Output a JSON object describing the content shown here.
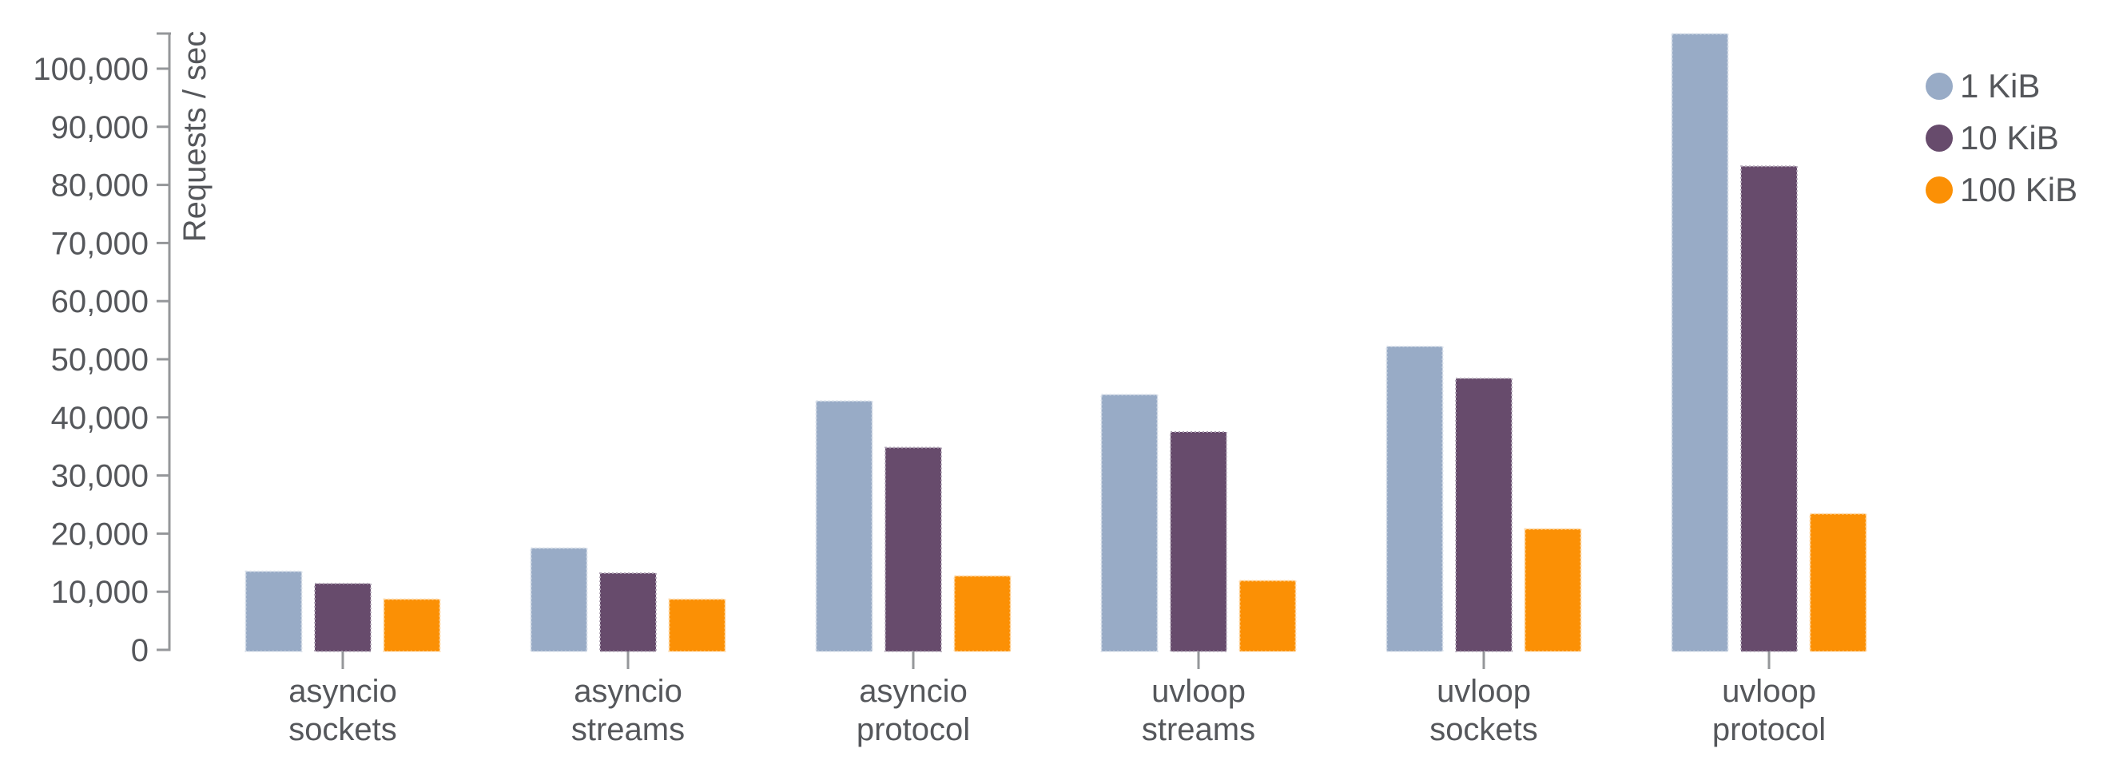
{
  "chart_data": {
    "type": "bar",
    "title": "",
    "ylabel": "Requests / sec",
    "xlabel": "",
    "categories": [
      [
        "asyncio",
        "sockets"
      ],
      [
        "asyncio",
        "streams"
      ],
      [
        "asyncio",
        "protocol"
      ],
      [
        "uvloop",
        "streams"
      ],
      [
        "uvloop",
        "sockets"
      ],
      [
        "uvloop",
        "protocol"
      ]
    ],
    "series": [
      {
        "name": "1 KiB",
        "color": "#98abc6",
        "edge_color": "#d5dde8",
        "values": [
          13500,
          17500,
          42800,
          43900,
          52200,
          106000
        ]
      },
      {
        "name": "10 KiB",
        "color": "#674b6c",
        "edge_color": "#b3a8b8",
        "values": [
          11400,
          13200,
          34800,
          37500,
          46700,
          83200
        ]
      },
      {
        "name": "100 KiB",
        "color": "#fb9005",
        "edge_color": "#fed9a8",
        "values": [
          8700,
          8700,
          12700,
          11900,
          20800,
          23400
        ]
      }
    ],
    "ylim": [
      0,
      106500
    ],
    "yticks": [
      0,
      10000,
      20000,
      30000,
      40000,
      50000,
      60000,
      70000,
      80000,
      90000,
      100000
    ],
    "ytick_labels": [
      "0",
      "10,000",
      "20,000",
      "30,000",
      "40,000",
      "50,000",
      "60,000",
      "70,000",
      "80,000",
      "90,000",
      "100,000"
    ],
    "grid": false,
    "legend_position": "top-right",
    "background_color": "#ffffff",
    "axis_color": "#95979a",
    "text_color": "#55575b"
  }
}
